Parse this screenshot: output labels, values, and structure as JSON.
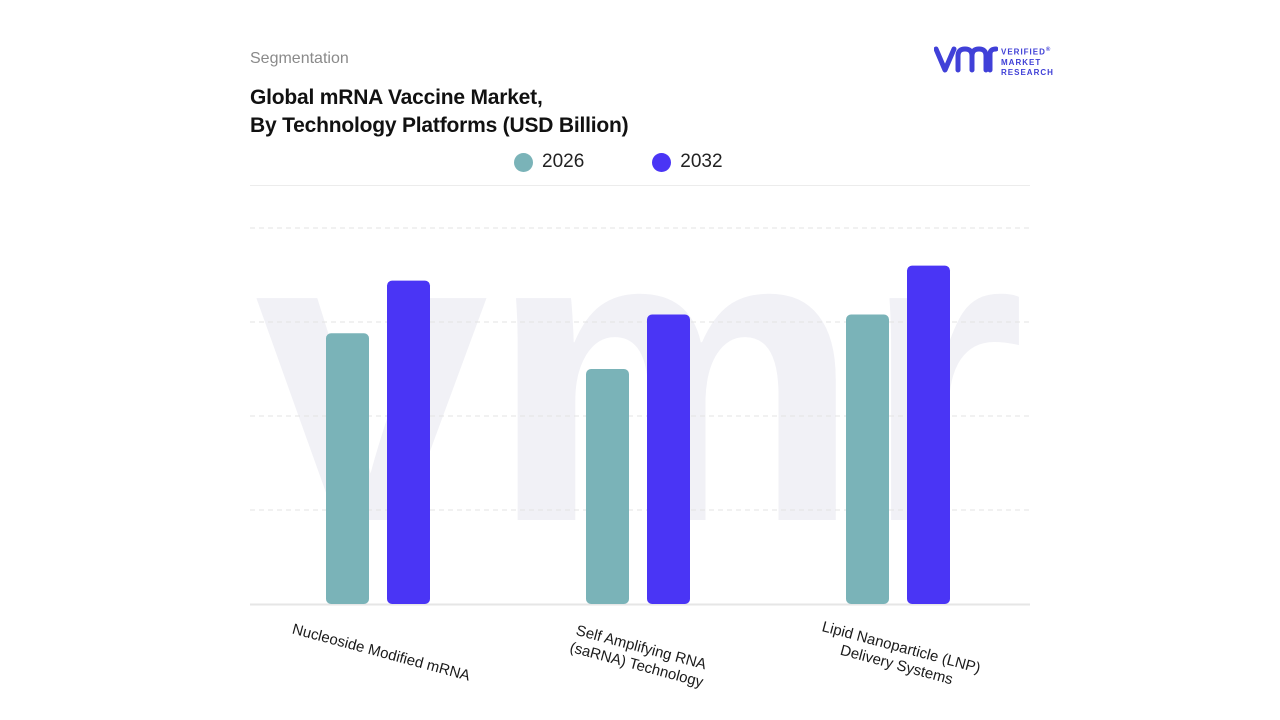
{
  "header": {
    "section_label": "Segmentation",
    "title_line1": "Global mRNA Vaccine Market,",
    "title_line2": "By Technology Platforms (USD Billion)"
  },
  "logo": {
    "mark": "vmr",
    "line1": "VERIFIED",
    "line2": "MARKET",
    "line3": "RESEARCH",
    "registered": "®"
  },
  "colors": {
    "series_2026": "#7ab3b8",
    "series_2032": "#4a35f5",
    "logo": "#4040d8"
  },
  "chart_data": {
    "type": "bar",
    "title": "Global mRNA Vaccine Market, By Technology Platforms (USD Billion)",
    "categories": [
      [
        "Nucleoside Modified mRNA"
      ],
      [
        "Self Amplifying RNA",
        "(saRNA) Technology"
      ],
      [
        "Lipid Nanoparticle (LNP)",
        "Delivery Systems"
      ]
    ],
    "series": [
      {
        "name": "2026",
        "values": [
          72,
          62.5,
          77
        ]
      },
      {
        "name": "2032",
        "values": [
          86,
          77,
          90
        ]
      }
    ],
    "ylim": [
      0,
      100
    ],
    "y_tick_labels_shown": false,
    "grid": "dashed horizontal",
    "legend_position": "top-center"
  }
}
